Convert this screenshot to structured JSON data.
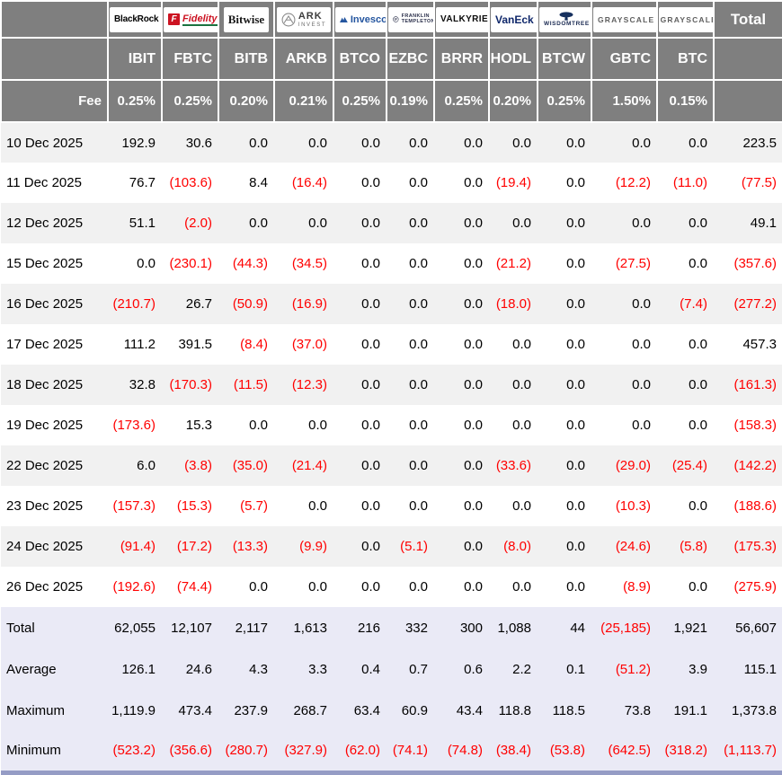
{
  "colors": {
    "header_bg": "#7f7f7f",
    "header_text": "#ffffff",
    "negative": "#ff0000",
    "row_alt_bg": "#f1f1f1",
    "row_bg": "#ffffff",
    "summary_bg": "#eaeaf6",
    "bottom_bar": "#959cc5"
  },
  "header": {
    "fee_label": "Fee",
    "total_label": "Total",
    "providers": [
      {
        "name": "BlackRock",
        "brand": "BlackRock"
      },
      {
        "name": "Fidelity",
        "brand": "Fidelity",
        "initial": "F"
      },
      {
        "name": "Bitwise",
        "brand": "Bitwise"
      },
      {
        "name": "ARK Invest",
        "brand_top": "ARK",
        "brand_bottom": "INVEST"
      },
      {
        "name": "Invesco",
        "brand": "Invesco"
      },
      {
        "name": "Franklin Templeton",
        "brand_top": "FRANKLIN",
        "brand_bottom": "TEMPLETON"
      },
      {
        "name": "Valkyrie",
        "brand": "VALKYRIE"
      },
      {
        "name": "VanEck",
        "brand": "VanEck"
      },
      {
        "name": "WisdomTree",
        "brand": "WISDOMTREE"
      },
      {
        "name": "Grayscale",
        "brand": "GRAYSCALE"
      },
      {
        "name": "Grayscale",
        "brand": "GRAYSCALE"
      }
    ]
  },
  "chart_data": {
    "type": "table",
    "columns": [
      "IBIT",
      "FBTC",
      "BITB",
      "ARKB",
      "BTCO",
      "EZBC",
      "BRRR",
      "HODL",
      "BTCW",
      "GBTC",
      "BTC"
    ],
    "fees": [
      "0.25%",
      "0.25%",
      "0.20%",
      "0.21%",
      "0.25%",
      "0.19%",
      "0.25%",
      "0.20%",
      "0.25%",
      "1.50%",
      "0.15%"
    ],
    "total_column_label": "Total",
    "rows": [
      {
        "date": "10 Dec 2025",
        "values": [
          "192.9",
          "30.6",
          "0.0",
          "0.0",
          "0.0",
          "0.0",
          "0.0",
          "0.0",
          "0.0",
          "0.0",
          "0.0"
        ],
        "total": "223.5"
      },
      {
        "date": "11 Dec 2025",
        "values": [
          "76.7",
          "(103.6)",
          "8.4",
          "(16.4)",
          "0.0",
          "0.0",
          "0.0",
          "(19.4)",
          "0.0",
          "(12.2)",
          "(11.0)"
        ],
        "total": "(77.5)"
      },
      {
        "date": "12 Dec 2025",
        "values": [
          "51.1",
          "(2.0)",
          "0.0",
          "0.0",
          "0.0",
          "0.0",
          "0.0",
          "0.0",
          "0.0",
          "0.0",
          "0.0"
        ],
        "total": "49.1"
      },
      {
        "date": "15 Dec 2025",
        "values": [
          "0.0",
          "(230.1)",
          "(44.3)",
          "(34.5)",
          "0.0",
          "0.0",
          "0.0",
          "(21.2)",
          "0.0",
          "(27.5)",
          "0.0"
        ],
        "total": "(357.6)"
      },
      {
        "date": "16 Dec 2025",
        "values": [
          "(210.7)",
          "26.7",
          "(50.9)",
          "(16.9)",
          "0.0",
          "0.0",
          "0.0",
          "(18.0)",
          "0.0",
          "0.0",
          "(7.4)"
        ],
        "total": "(277.2)"
      },
      {
        "date": "17 Dec 2025",
        "values": [
          "111.2",
          "391.5",
          "(8.4)",
          "(37.0)",
          "0.0",
          "0.0",
          "0.0",
          "0.0",
          "0.0",
          "0.0",
          "0.0"
        ],
        "total": "457.3"
      },
      {
        "date": "18 Dec 2025",
        "values": [
          "32.8",
          "(170.3)",
          "(11.5)",
          "(12.3)",
          "0.0",
          "0.0",
          "0.0",
          "0.0",
          "0.0",
          "0.0",
          "0.0"
        ],
        "total": "(161.3)"
      },
      {
        "date": "19 Dec 2025",
        "values": [
          "(173.6)",
          "15.3",
          "0.0",
          "0.0",
          "0.0",
          "0.0",
          "0.0",
          "0.0",
          "0.0",
          "0.0",
          "0.0"
        ],
        "total": "(158.3)"
      },
      {
        "date": "22 Dec 2025",
        "values": [
          "6.0",
          "(3.8)",
          "(35.0)",
          "(21.4)",
          "0.0",
          "0.0",
          "0.0",
          "(33.6)",
          "0.0",
          "(29.0)",
          "(25.4)"
        ],
        "total": "(142.2)"
      },
      {
        "date": "23 Dec 2025",
        "values": [
          "(157.3)",
          "(15.3)",
          "(5.7)",
          "0.0",
          "0.0",
          "0.0",
          "0.0",
          "0.0",
          "0.0",
          "(10.3)",
          "0.0"
        ],
        "total": "(188.6)"
      },
      {
        "date": "24 Dec 2025",
        "values": [
          "(91.4)",
          "(17.2)",
          "(13.3)",
          "(9.9)",
          "0.0",
          "(5.1)",
          "0.0",
          "(8.0)",
          "0.0",
          "(24.6)",
          "(5.8)"
        ],
        "total": "(175.3)"
      },
      {
        "date": "26 Dec 2025",
        "values": [
          "(192.6)",
          "(74.4)",
          "0.0",
          "0.0",
          "0.0",
          "0.0",
          "0.0",
          "0.0",
          "0.0",
          "(8.9)",
          "0.0"
        ],
        "total": "(275.9)"
      }
    ],
    "summary": [
      {
        "label": "Total",
        "values": [
          "62,055",
          "12,107",
          "2,117",
          "1,613",
          "216",
          "332",
          "300",
          "1,088",
          "44",
          "(25,185)",
          "1,921"
        ],
        "total": "56,607"
      },
      {
        "label": "Average",
        "values": [
          "126.1",
          "24.6",
          "4.3",
          "3.3",
          "0.4",
          "0.7",
          "0.6",
          "2.2",
          "0.1",
          "(51.2)",
          "3.9"
        ],
        "total": "115.1"
      },
      {
        "label": "Maximum",
        "values": [
          "1,119.9",
          "473.4",
          "237.9",
          "268.7",
          "63.4",
          "60.9",
          "43.4",
          "118.8",
          "118.5",
          "73.8",
          "191.1"
        ],
        "total": "1,373.8"
      },
      {
        "label": "Minimum",
        "values": [
          "(523.2)",
          "(356.6)",
          "(280.7)",
          "(327.9)",
          "(62.0)",
          "(74.1)",
          "(74.8)",
          "(38.4)",
          "(53.8)",
          "(642.5)",
          "(318.2)"
        ],
        "total": "(1,113.7)"
      }
    ]
  }
}
